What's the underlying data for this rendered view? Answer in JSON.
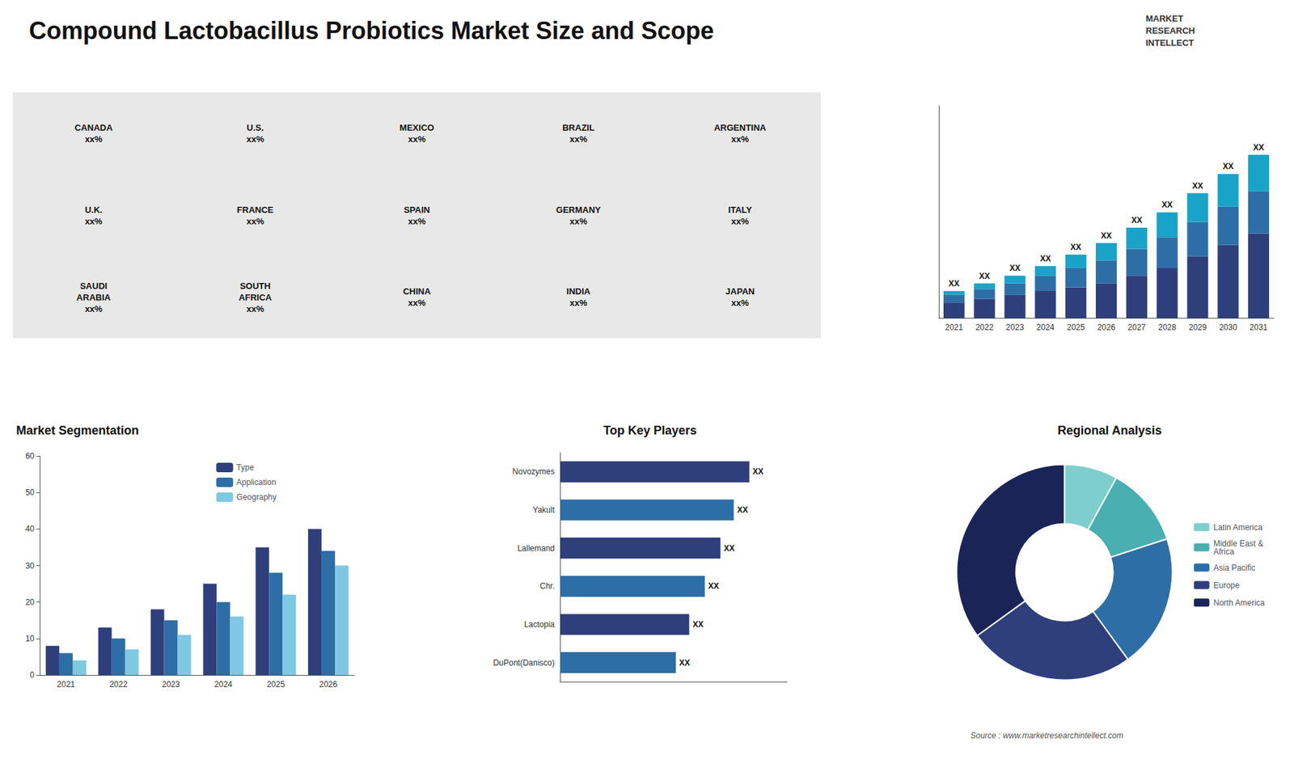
{
  "title": "Compound Lactobacillus Probiotics Market Size and Scope",
  "annotations": [
    "Source : www.marketresearchintellect.com",
    "MARKET\nRESEARCH\nINTELLECT"
  ],
  "chart_data": [
    {
      "type": "map",
      "annotations": [
        "CANADA\nxx%",
        "U.S.\nxx%",
        "MEXICO\nxx%",
        "BRAZIL\nxx%",
        "ARGENTINA\nxx%",
        "U.K.\nxx%",
        "FRANCE\nxx%",
        "SPAIN\nxx%",
        "GERMANY\nxx%",
        "ITALY\nxx%",
        "SAUDI\nARABIA\nxx%",
        "SOUTH\nAFRICA\nxx%",
        "CHINA\nxx%",
        "INDIA\nxx%",
        "JAPAN\nxx%"
      ]
    },
    {
      "type": "bar",
      "stacked": true,
      "categories": [
        "2021",
        "2022",
        "2023",
        "2024",
        "2025",
        "2026",
        "2027",
        "2028",
        "2029",
        "2030",
        "2031"
      ],
      "series": [
        {
          "color": "#2e3f7c",
          "values": [
            4,
            5,
            6,
            7,
            8,
            9,
            11,
            13,
            16,
            19,
            22
          ]
        },
        {
          "color": "#2e6ea6",
          "values": [
            2,
            2.5,
            3,
            4,
            5,
            6,
            7,
            8,
            9,
            10,
            11
          ]
        },
        {
          "color": "#1aa3c8",
          "values": [
            1,
            1.5,
            2,
            2.5,
            3.5,
            4.5,
            5.5,
            6.5,
            7.5,
            8.5,
            9.5
          ]
        }
      ],
      "annotations": [
        "XX",
        "XX",
        "XX",
        "XX",
        "XX",
        "XX",
        "XX",
        "XX",
        "XX",
        "XX",
        "XX"
      ],
      "ylim": [
        0,
        55.25
      ],
      "tick_labels": "x",
      "grid": false
    },
    {
      "type": "bar",
      "title": "Market Segmentation",
      "categories": [
        "2021",
        "2022",
        "2023",
        "2024",
        "2025",
        "2026"
      ],
      "series": [
        {
          "name": "Type",
          "color": "#2e3f7c",
          "values": [
            8,
            13,
            18,
            25,
            35,
            40
          ]
        },
        {
          "name": "Application",
          "color": "#2e6ea6",
          "values": [
            6,
            10,
            15,
            20,
            28,
            34
          ]
        },
        {
          "name": "Geography",
          "color": "#7ec8e3",
          "values": [
            4,
            7,
            11,
            16,
            22,
            30
          ]
        }
      ],
      "ylim": [
        0,
        60
      ],
      "yticks": [
        0,
        10,
        20,
        30,
        40,
        50,
        60
      ],
      "legend": "upper right",
      "grid": false
    },
    {
      "type": "bar",
      "title": "Top Key Players",
      "orientation": "horizontal",
      "categories": [
        "Novozymes",
        "Yakult",
        "Lallemand",
        "Chr.",
        "Lactopia",
        "DuPont(Danisco)"
      ],
      "values": [
        85,
        78,
        72,
        65,
        58,
        52
      ],
      "colors": [
        "#2e3f7c",
        "#2e6ea6",
        "#2e3f7c",
        "#2e6ea6",
        "#2e3f7c",
        "#2e6ea6"
      ],
      "annotations": [
        "XX",
        "XX",
        "XX",
        "XX",
        "XX",
        "XX"
      ],
      "xlim": [
        0,
        102
      ],
      "tick_labels": "y",
      "grid": false
    },
    {
      "type": "pie",
      "title": "Regional Analysis",
      "categories": [
        "Latin America",
        "Middle East &\nAfrica",
        "Asia Pacific",
        "Europe",
        "North America"
      ],
      "values": [
        8,
        12,
        20,
        25,
        35
      ],
      "colors": [
        "#7ecece",
        "#4aafb0",
        "#2e6ea6",
        "#2e3f7c",
        "#1a2456"
      ],
      "legend": "right",
      "data_labels": false
    }
  ]
}
